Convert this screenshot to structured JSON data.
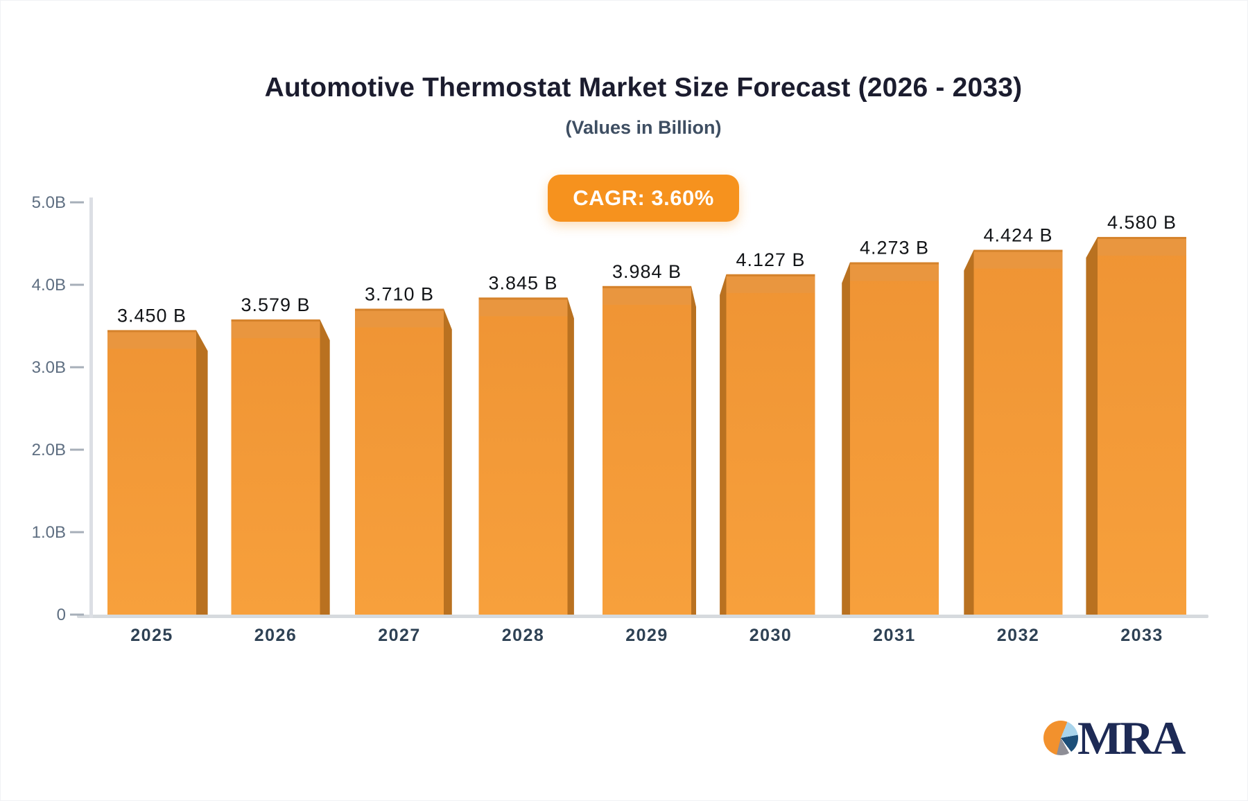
{
  "chart_data": {
    "type": "bar",
    "title": "Automotive Thermostat Market Size Forecast (2026 - 2033)",
    "subtitle": "(Values in Billion)",
    "annotation": {
      "label": "CAGR: 3.60%",
      "background": "#F6921E",
      "text_color": "#FFFFFF"
    },
    "categories": [
      "2025",
      "2026",
      "2027",
      "2028",
      "2029",
      "2030",
      "2031",
      "2032",
      "2033"
    ],
    "values": [
      3.45,
      3.579,
      3.71,
      3.845,
      3.984,
      4.127,
      4.273,
      4.424,
      4.58
    ],
    "value_labels": [
      "3.450 B",
      "3.579 B",
      "3.710 B",
      "3.845 B",
      "3.984 B",
      "4.127 B",
      "4.273 B",
      "4.424 B",
      "4.580 B"
    ],
    "unit": "Billion",
    "y_ticks": [
      "5.0B",
      "4.0B",
      "3.0B",
      "2.0B",
      "1.0B",
      "0"
    ],
    "ylim": [
      0,
      5
    ],
    "grid": false,
    "legend": false,
    "bar_style": "3d-beveled",
    "colors": {
      "bar_face_top": "#EF9434",
      "bar_face_bottom": "#F7A03C",
      "bar_cap": "#E9963F",
      "bar_cap_edge": "#D5832C",
      "bar_side": "#B97120",
      "axis_line": "#DCDFE4",
      "baseline": "#D6DADE",
      "tick_dash": "#A7AFB9",
      "tick_text": "#5E6E81",
      "x_label_text": "#2E4154",
      "value_label_text": "#121417"
    }
  },
  "logo": {
    "text": "MRA",
    "text_color": "#1D2A55",
    "pie_slices": [
      {
        "name": "orange-top",
        "color": "#F2912D",
        "from": 0,
        "to": 22
      },
      {
        "name": "light-blue",
        "color": "#A9D4EB",
        "from": 22,
        "to": 80
      },
      {
        "name": "dark-blue",
        "color": "#1C4E78",
        "from": 80,
        "to": 143
      },
      {
        "name": "separator",
        "color": "#FFFFFF",
        "from": 143,
        "to": 151
      },
      {
        "name": "gray",
        "color": "#8E8E96",
        "from": 151,
        "to": 194
      },
      {
        "name": "orange-main",
        "color": "#F2912D",
        "from": 194,
        "to": 360
      }
    ]
  }
}
